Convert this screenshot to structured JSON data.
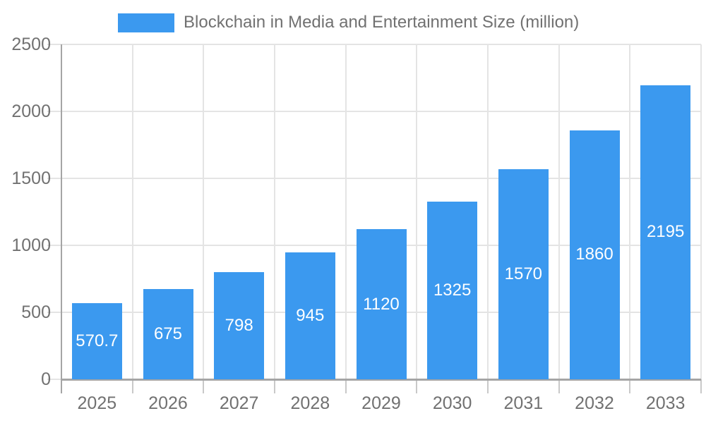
{
  "chart_data": {
    "type": "bar",
    "title": "Blockchain in Media and Entertainment Size (million)",
    "legend_position": "top",
    "grid": true,
    "categories": [
      "2025",
      "2026",
      "2027",
      "2028",
      "2029",
      "2030",
      "2031",
      "2032",
      "2033"
    ],
    "series": [
      {
        "name": "Blockchain in Media and Entertainment Size (million)",
        "values": [
          570.7,
          675,
          798,
          945,
          1120,
          1325,
          1570,
          1860,
          2195
        ]
      }
    ],
    "bar_value_labels": [
      "570.7",
      "675",
      "798",
      "945",
      "1120",
      "1325",
      "1570",
      "1860",
      "2195"
    ],
    "xlabel": "",
    "ylabel": "",
    "ylim": [
      0,
      2500
    ],
    "yticks": [
      0,
      500,
      1000,
      1500,
      2000,
      2500
    ]
  },
  "colors": {
    "bar": "#3B99EF",
    "grid": "#E4E4E4",
    "axis": "#A5A5A5",
    "tick": "#C9C9C9",
    "label_text": "#717171",
    "value_text": "#FFFFFF",
    "background": "#FFFFFF"
  }
}
